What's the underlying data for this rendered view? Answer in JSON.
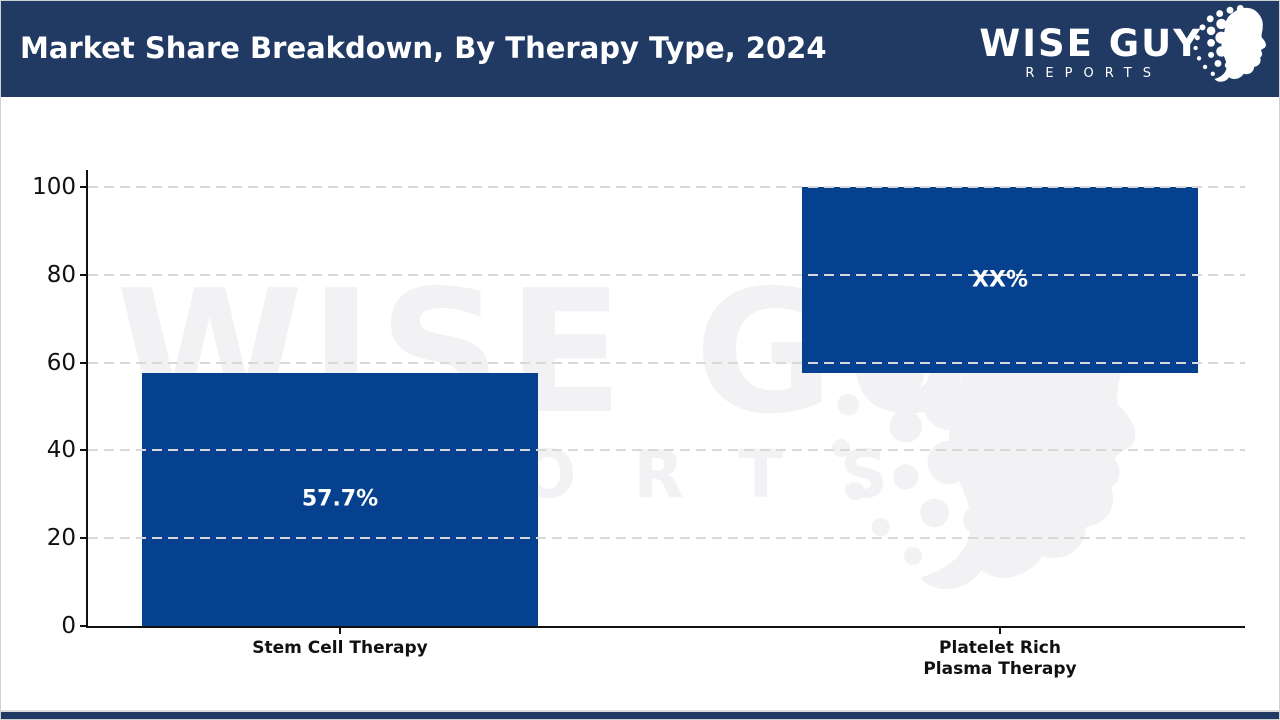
{
  "header": {
    "title": "Market Share Breakdown, By Therapy Type, 2024",
    "logo": {
      "line1": "WISE GUY",
      "line2": "REPORTS"
    }
  },
  "watermark": {
    "line1": "WISE GUY",
    "line2": "REPORTS"
  },
  "colors": {
    "header_bg": "#213a64",
    "footer_bg": "#213a64",
    "bar": "#05418f",
    "grid": "#d9d9d9",
    "axis": "#111111",
    "watermark": "#f2f2f4",
    "bar_label": "#ffffff"
  },
  "chart_data": {
    "type": "bar",
    "title": "Market Share Breakdown, By Therapy Type, 2024",
    "categories": [
      "Stem Cell Therapy",
      "Platelet Rich\nPlasma Therapy"
    ],
    "bars": [
      {
        "category": "Stem Cell Therapy",
        "start": 0,
        "end": 57.7,
        "value_label": "57.7%"
      },
      {
        "category": "Platelet Rich Plasma Therapy",
        "start": 57.7,
        "end": 100,
        "value_label": "XX%"
      }
    ],
    "yticks": [
      0,
      20,
      40,
      60,
      80,
      100
    ],
    "ylim": [
      0,
      105
    ],
    "xlabel": "",
    "ylabel": "",
    "grid": "horizontal-dashed",
    "grid_above_bars": true,
    "legend": "none",
    "bar_style": "floating-segments"
  }
}
